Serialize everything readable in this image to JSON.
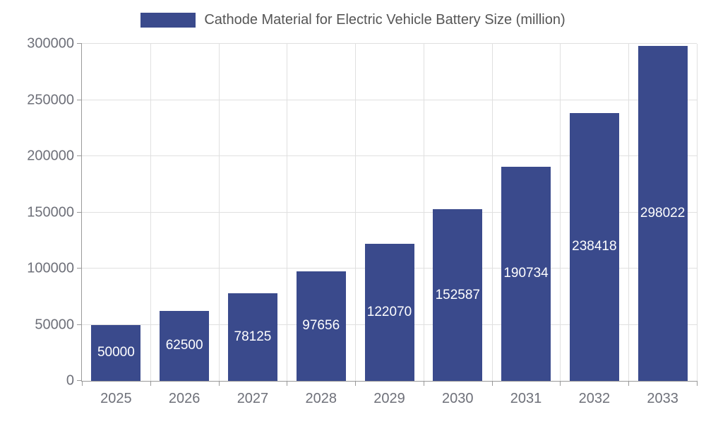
{
  "chart_data": {
    "type": "bar",
    "title": "",
    "legend": "Cathode Material for Electric Vehicle Battery Size (million)",
    "categories": [
      "2025",
      "2026",
      "2027",
      "2028",
      "2029",
      "2030",
      "2031",
      "2032",
      "2033"
    ],
    "values": [
      50000,
      62500,
      78125,
      97656,
      122070,
      152587,
      190734,
      238418,
      298022
    ],
    "ylim": [
      0,
      300000
    ],
    "yticks": [
      0,
      50000,
      100000,
      150000,
      200000,
      250000,
      300000
    ],
    "xlabel": "",
    "ylabel": "",
    "grid": "both (horizontal at y-ticks, vertical at category boundaries)",
    "legend_position": "top-center",
    "bar_labels": "white, centered inside bars",
    "colors": {
      "bar": "#3A4A8C",
      "value_label": "#FFFFFF",
      "axis_label": "#6E7079",
      "legend_text": "#555555",
      "gridline": "#E0E0E0",
      "spine": "#999999"
    }
  }
}
